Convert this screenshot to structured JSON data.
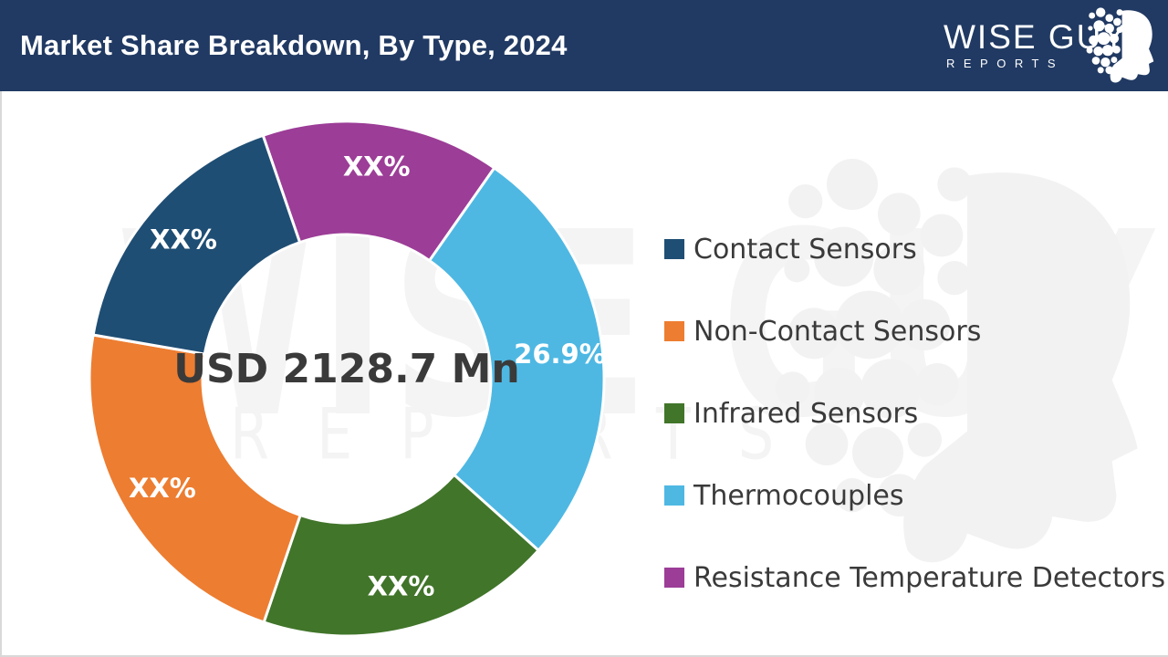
{
  "header": {
    "title": "Market Share Breakdown, By Type, 2024",
    "bg_color": "#213A63",
    "logo": {
      "line1": "WISE GUY",
      "line2": "REPORTS",
      "face_icon": "dotted-head-profile"
    }
  },
  "watermark": {
    "line1": "WISE GUY",
    "line2": "REPORTS",
    "face_icon": "dotted-head-profile"
  },
  "chart_data": {
    "type": "pie",
    "variant": "donut",
    "title": "Market Share Breakdown, By Type, 2024",
    "center_total": "USD 2128.7 Mn",
    "start_angle_deg": -19,
    "legend_position": "right",
    "series": [
      {
        "name": "Resistance Temperature Detectors",
        "label": "XX%",
        "value": 15.0,
        "color": "#9C3D97"
      },
      {
        "name": "Thermocouples",
        "label": "26.9%",
        "value": 26.9,
        "color": "#4EB8E3"
      },
      {
        "name": "Infrared Sensors",
        "label": "XX%",
        "value": 18.6,
        "color": "#41752A"
      },
      {
        "name": "Non-Contact Sensors",
        "label": "XX%",
        "value": 22.5,
        "color": "#ED7D31"
      },
      {
        "name": "Contact Sensors",
        "label": "XX%",
        "value": 17.0,
        "color": "#1F4E74"
      }
    ]
  },
  "center_label": "USD 2128.7 Mn",
  "legend": {
    "items": [
      {
        "label": "Contact Sensors",
        "color": "#1F4E74"
      },
      {
        "label": "Non-Contact Sensors",
        "color": "#ED7D31"
      },
      {
        "label": "Infrared Sensors",
        "color": "#41752A"
      },
      {
        "label": "Thermocouples",
        "color": "#4EB8E3"
      },
      {
        "label": "Resistance Temperature Detectors",
        "color": "#9C3D97"
      }
    ]
  }
}
